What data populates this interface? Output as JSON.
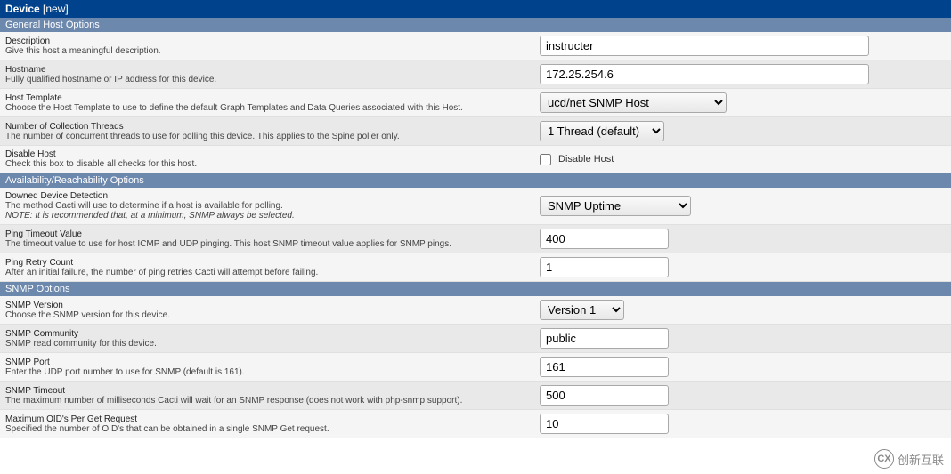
{
  "title": "Device",
  "title_suffix": "[new]",
  "sections": {
    "general": "General Host Options",
    "availability": "Availability/Reachability Options",
    "snmp": "SNMP Options"
  },
  "fields": {
    "description": {
      "label": "Description",
      "desc": "Give this host a meaningful description.",
      "value": "instructer"
    },
    "hostname": {
      "label": "Hostname",
      "desc": "Fully qualified hostname or IP address for this device.",
      "value": "172.25.254.6"
    },
    "host_template": {
      "label": "Host Template",
      "desc": "Choose the Host Template to use to define the default Graph Templates and Data Queries associated with this Host.",
      "value": "ucd/net SNMP Host"
    },
    "threads": {
      "label": "Number of Collection Threads",
      "desc": "The number of concurrent threads to use for polling this device. This applies to the Spine poller only.",
      "value": "1 Thread (default)"
    },
    "disable": {
      "label": "Disable Host",
      "desc": "Check this box to disable all checks for this host.",
      "checkbox_label": "Disable Host"
    },
    "downed": {
      "label": "Downed Device Detection",
      "desc": "The method Cacti will use to determine if a host is available for polling.",
      "note": "NOTE: It is recommended that, at a minimum, SNMP always be selected.",
      "value": "SNMP Uptime"
    },
    "ping_timeout": {
      "label": "Ping Timeout Value",
      "desc": "The timeout value to use for host ICMP and UDP pinging. This host SNMP timeout value applies for SNMP pings.",
      "value": "400"
    },
    "ping_retry": {
      "label": "Ping Retry Count",
      "desc": "After an initial failure, the number of ping retries Cacti will attempt before failing.",
      "value": "1"
    },
    "snmp_version": {
      "label": "SNMP Version",
      "desc": "Choose the SNMP version for this device.",
      "value": "Version 1"
    },
    "snmp_community": {
      "label": "SNMP Community",
      "desc": "SNMP read community for this device.",
      "value": "public"
    },
    "snmp_port": {
      "label": "SNMP Port",
      "desc": "Enter the UDP port number to use for SNMP (default is 161).",
      "value": "161"
    },
    "snmp_timeout": {
      "label": "SNMP Timeout",
      "desc": "The maximum number of milliseconds Cacti will wait for an SNMP response (does not work with php-snmp support).",
      "value": "500"
    },
    "max_oids": {
      "label": "Maximum OID's Per Get Request",
      "desc": "Specified the number of OID's that can be obtained in a single SNMP Get request.",
      "value": "10"
    }
  },
  "watermark": "创新互联"
}
